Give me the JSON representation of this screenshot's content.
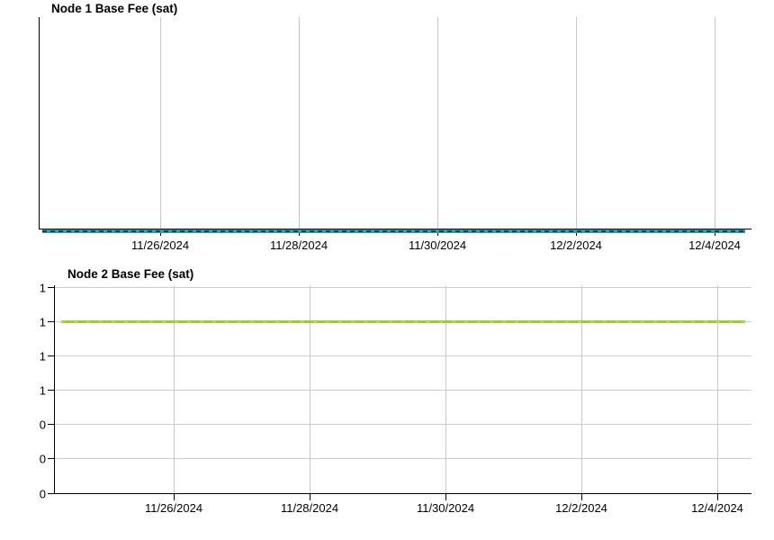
{
  "page": {
    "background": "#ffffff"
  },
  "chart_data": [
    {
      "type": "line",
      "title": "Node 1 Base Fee (sat)",
      "xlabel": "",
      "ylabel": "",
      "x_tick_labels": [
        "11/26/2024",
        "11/28/2024",
        "11/30/2024",
        "12/2/2024",
        "12/4/2024"
      ],
      "y_tick_labels": [],
      "x_range": [
        "~11/24/2024",
        "~12/4/2024"
      ],
      "ylim_visible": "no y-axis labels shown",
      "grid": "vertical date gridlines only",
      "legend": "none",
      "series": [
        {
          "name": "Node 1 Base Fee",
          "color": "#2aa2b3",
          "marker_color": "#0e3f4b",
          "constant_value": 0,
          "description": "flat line at 0 along the x-axis for entire date range"
        }
      ]
    },
    {
      "type": "line",
      "title": "Node 2 Base Fee (sat)",
      "xlabel": "",
      "ylabel": "",
      "x_tick_labels": [
        "11/26/2024",
        "11/28/2024",
        "11/30/2024",
        "12/2/2024",
        "12/4/2024"
      ],
      "y_tick_labels": [
        "1",
        "1",
        "1",
        "1",
        "0",
        "0",
        "0"
      ],
      "y_tick_values": [
        1.2,
        1.0,
        0.8,
        0.6,
        0.4,
        0.2,
        0
      ],
      "ylim": [
        0,
        1.2
      ],
      "x_range": [
        "~11/24/2024",
        "~12/4/2024"
      ],
      "grid": "horizontal and vertical gridlines",
      "legend": "none",
      "series": [
        {
          "name": "Node 2 Base Fee",
          "color": "#9acd32",
          "marker_color": "#c6e08e",
          "constant_value": 1,
          "description": "flat line at 1 for entire date range"
        }
      ]
    }
  ],
  "colors": {
    "axis": "#000000",
    "gridline": "#c6c6c6",
    "node1_line": "#2aa2b3",
    "node2_line": "#9acd32",
    "background": "#ffffff",
    "text": "#000000"
  }
}
